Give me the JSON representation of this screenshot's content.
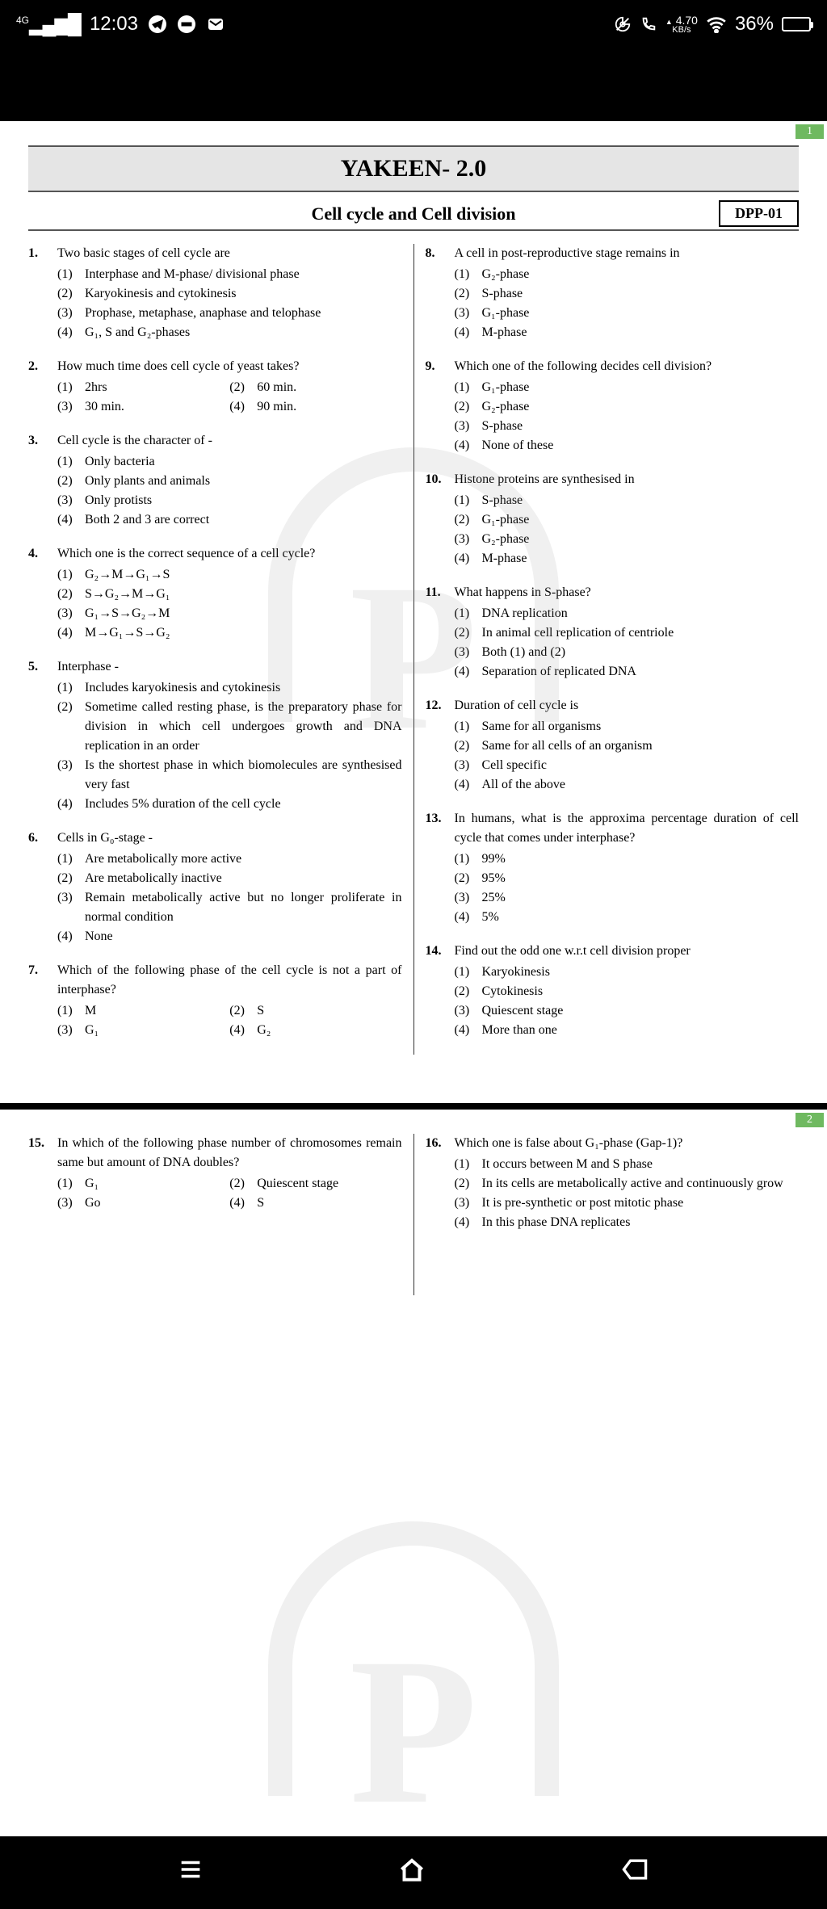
{
  "statusbar": {
    "network": "4G",
    "time": "12:03",
    "kbs_rate": "4.70",
    "kbs_label": "KB/s",
    "battery_pct": "36%"
  },
  "doc": {
    "title": "YAKEEN- 2.0",
    "subtitle": "Cell cycle and Cell division",
    "dpp": "DPP-01",
    "page1_tag": "1",
    "page2_tag": "2"
  },
  "page1": {
    "left": [
      {
        "n": "1.",
        "q": "Two basic stages of cell cycle are",
        "opts": [
          {
            "n": "(1)",
            "t": "Interphase and M-phase/ divisional phase"
          },
          {
            "n": "(2)",
            "t": "Karyokinesis and cytokinesis"
          },
          {
            "n": "(3)",
            "t": "Prophase, metaphase, anaphase and telophase"
          },
          {
            "n": "(4)",
            "t": "G₁, S and G₂-phases"
          }
        ]
      },
      {
        "n": "2.",
        "q": "How much time does cell cycle of yeast takes?",
        "grid": true,
        "opts": [
          {
            "n": "(1)",
            "t": "2hrs"
          },
          {
            "n": "(2)",
            "t": "60 min."
          },
          {
            "n": "(3)",
            "t": "30 min."
          },
          {
            "n": "(4)",
            "t": "90 min."
          }
        ]
      },
      {
        "n": "3.",
        "q": "Cell cycle is the character of -",
        "opts": [
          {
            "n": "(1)",
            "t": "Only bacteria"
          },
          {
            "n": "(2)",
            "t": "Only plants and animals"
          },
          {
            "n": "(3)",
            "t": "Only protists"
          },
          {
            "n": "(4)",
            "t": "Both 2 and 3 are correct"
          }
        ]
      },
      {
        "n": "4.",
        "q": "Which one is the correct sequence of a cell cycle?",
        "opts": [
          {
            "n": "(1)",
            "t": "G₂→M→G₁→S"
          },
          {
            "n": "(2)",
            "t": "S→G₂→M→G₁"
          },
          {
            "n": "(3)",
            "t": "G₁→S→G₂→M"
          },
          {
            "n": "(4)",
            "t": "M→G₁→S→G₂"
          }
        ]
      },
      {
        "n": "5.",
        "q": "Interphase -",
        "opts": [
          {
            "n": "(1)",
            "t": "Includes karyokinesis and cytokinesis"
          },
          {
            "n": "(2)",
            "t": "Sometime called resting phase, is the preparatory phase for division in which cell undergoes growth and DNA replication in an order"
          },
          {
            "n": "(3)",
            "t": "Is the shortest phase in which biomolecules are synthesised very fast"
          },
          {
            "n": "(4)",
            "t": "Includes 5% duration of the cell cycle"
          }
        ]
      },
      {
        "n": "6.",
        "q": "Cells in G₀-stage -",
        "opts": [
          {
            "n": "(1)",
            "t": "Are metabolically more active"
          },
          {
            "n": "(2)",
            "t": "Are metabolically inactive"
          },
          {
            "n": "(3)",
            "t": "Remain metabolically active but no longer proliferate in normal condition"
          },
          {
            "n": "(4)",
            "t": "None"
          }
        ]
      },
      {
        "n": "7.",
        "q": "Which of the following phase of the cell cycle is not a part of interphase?",
        "grid": true,
        "opts": [
          {
            "n": "(1)",
            "t": "M"
          },
          {
            "n": "(2)",
            "t": "S"
          },
          {
            "n": "(3)",
            "t": "G₁"
          },
          {
            "n": "(4)",
            "t": "G₂"
          }
        ]
      }
    ],
    "right": [
      {
        "n": "8.",
        "q": "A cell in post-reproductive stage remains in",
        "opts": [
          {
            "n": "(1)",
            "t": "G₂-phase"
          },
          {
            "n": "(2)",
            "t": "S-phase"
          },
          {
            "n": "(3)",
            "t": "G₁-phase"
          },
          {
            "n": "(4)",
            "t": "M-phase"
          }
        ]
      },
      {
        "n": "9.",
        "q": "Which one of the following decides cell division?",
        "opts": [
          {
            "n": "(1)",
            "t": "G₁-phase"
          },
          {
            "n": "(2)",
            "t": "G₂-phase"
          },
          {
            "n": "(3)",
            "t": "S-phase"
          },
          {
            "n": "(4)",
            "t": "None of these"
          }
        ]
      },
      {
        "n": "10.",
        "q": "Histone proteins are synthesised in",
        "opts": [
          {
            "n": "(1)",
            "t": "S-phase"
          },
          {
            "n": "(2)",
            "t": "G₁-phase"
          },
          {
            "n": "(3)",
            "t": "G₂-phase"
          },
          {
            "n": "(4)",
            "t": "M-phase"
          }
        ]
      },
      {
        "n": "11.",
        "q": "What happens in S-phase?",
        "opts": [
          {
            "n": "(1)",
            "t": "DNA replication"
          },
          {
            "n": "(2)",
            "t": "In animal cell replication of centriole"
          },
          {
            "n": "(3)",
            "t": "Both (1) and (2)"
          },
          {
            "n": "(4)",
            "t": "Separation of replicated DNA"
          }
        ]
      },
      {
        "n": "12.",
        "q": "Duration of cell cycle is",
        "opts": [
          {
            "n": "(1)",
            "t": "Same for all organisms"
          },
          {
            "n": "(2)",
            "t": "Same for all cells of an organism"
          },
          {
            "n": "(3)",
            "t": "Cell specific"
          },
          {
            "n": "(4)",
            "t": "All of the above"
          }
        ]
      },
      {
        "n": "13.",
        "q": "In humans, what is the approxima percentage duration of cell cycle that comes under interphase?",
        "opts": [
          {
            "n": "(1)",
            "t": "99%"
          },
          {
            "n": "(2)",
            "t": "95%"
          },
          {
            "n": "(3)",
            "t": "25%"
          },
          {
            "n": "(4)",
            "t": "5%"
          }
        ]
      },
      {
        "n": "14.",
        "q": "Find out the odd one w.r.t cell division proper",
        "opts": [
          {
            "n": "(1)",
            "t": "Karyokinesis"
          },
          {
            "n": "(2)",
            "t": "Cytokinesis"
          },
          {
            "n": "(3)",
            "t": "Quiescent stage"
          },
          {
            "n": "(4)",
            "t": "More than one"
          }
        ]
      }
    ]
  },
  "page2": {
    "left": [
      {
        "n": "15.",
        "q": "In which of the following phase number of chromosomes remain same but amount of DNA doubles?",
        "grid": true,
        "opts": [
          {
            "n": "(1)",
            "t": "G₁"
          },
          {
            "n": "(2)",
            "t": "Quiescent stage"
          },
          {
            "n": "(3)",
            "t": "Go"
          },
          {
            "n": "(4)",
            "t": "S"
          }
        ]
      }
    ],
    "right": [
      {
        "n": "16.",
        "q": "Which one is false about G₁-phase (Gap-1)?",
        "opts": [
          {
            "n": "(1)",
            "t": "It occurs between M and S phase"
          },
          {
            "n": "(2)",
            "t": "In its cells are metabolically active and continuously grow"
          },
          {
            "n": "(3)",
            "t": "It is pre-synthetic or post mitotic phase"
          },
          {
            "n": "(4)",
            "t": "In this phase DNA replicates"
          }
        ]
      }
    ]
  }
}
